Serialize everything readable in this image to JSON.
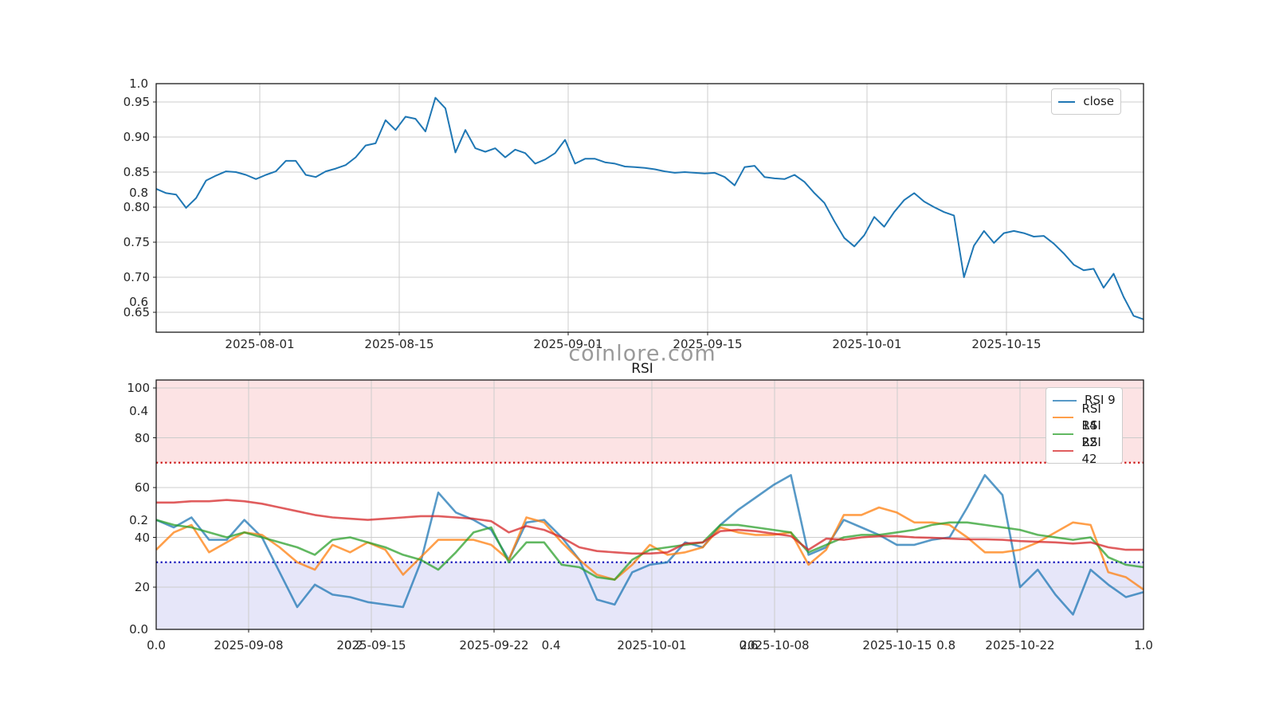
{
  "watermark": "coinlore.com",
  "colors": {
    "close_line": "#1f77b4",
    "rsi9": "rgba(31,119,180,0.75)",
    "rsi14": "rgba(255,127,14,0.75)",
    "rsi22": "rgba(44,160,44,0.75)",
    "rsi42": "rgba(214,39,40,0.75)",
    "overbought_band": "#fce3e4",
    "oversold_band": "#e6e6f9",
    "overbought_dotted": "#cc1111",
    "oversold_dotted": "#1111bb",
    "gridline": "#cccccc",
    "spine": "#1a1a1a"
  },
  "chart_data": [
    {
      "type": "line",
      "title": "",
      "xlabel": "",
      "ylabel": "",
      "x_start": "2025-07-22",
      "x_end": "2025-10-28",
      "x_tick_labels": [
        "2025-08-01",
        "2025-08-15",
        "2025-09-01",
        "2025-09-15",
        "2025-10-01",
        "2025-10-15"
      ],
      "y_tick_labels": [
        "0.95",
        "0.90",
        "0.85",
        "0.80",
        "0.75",
        "0.70",
        "0.65"
      ],
      "y_tick_values": [
        0.95,
        0.9,
        0.85,
        0.8,
        0.75,
        0.7,
        0.65
      ],
      "ylim": [
        0.624,
        0.975
      ],
      "grid": true,
      "legend_position": "upper right",
      "series": [
        {
          "name": "close",
          "values": [
            0.826,
            0.82,
            0.818,
            0.799,
            0.813,
            0.838,
            0.845,
            0.851,
            0.85,
            0.846,
            0.84,
            0.846,
            0.851,
            0.866,
            0.866,
            0.846,
            0.843,
            0.851,
            0.855,
            0.86,
            0.871,
            0.888,
            0.891,
            0.924,
            0.91,
            0.929,
            0.926,
            0.908,
            0.956,
            0.941,
            0.878,
            0.91,
            0.884,
            0.879,
            0.884,
            0.871,
            0.882,
            0.877,
            0.862,
            0.868,
            0.877,
            0.896,
            0.862,
            0.869,
            0.869,
            0.864,
            0.862,
            0.858,
            0.857,
            0.856,
            0.854,
            0.851,
            0.849,
            0.85,
            0.849,
            0.848,
            0.849,
            0.843,
            0.831,
            0.857,
            0.859,
            0.843,
            0.841,
            0.84,
            0.846,
            0.836,
            0.82,
            0.806,
            0.78,
            0.756,
            0.744,
            0.76,
            0.786,
            0.772,
            0.793,
            0.81,
            0.82,
            0.808,
            0.8,
            0.793,
            0.788,
            0.7,
            0.745,
            0.766,
            0.749,
            0.763,
            0.766,
            0.763,
            0.758,
            0.759,
            0.748,
            0.734,
            0.718,
            0.71,
            0.712,
            0.685,
            0.705,
            0.672,
            0.645,
            0.64
          ]
        }
      ]
    },
    {
      "type": "line",
      "title": "RSI",
      "xlabel": "",
      "ylabel": "",
      "x_start": "2025-09-03",
      "x_end": "2025-10-29",
      "x_tick_labels": [
        "2025-09-08",
        "2025-09-15",
        "2025-09-22",
        "2025-10-01",
        "2025-10-08",
        "2025-10-15",
        "2025-10-22"
      ],
      "y_tick_labels": [
        "100",
        "80",
        "60",
        "40",
        "20"
      ],
      "y_tick_values": [
        100,
        80,
        60,
        40,
        20
      ],
      "ylim": [
        3,
        103
      ],
      "grid": true,
      "legend_position": "upper right",
      "overbought_level": 70,
      "oversold_level": 30,
      "series": [
        {
          "name": "RSI 9",
          "values": [
            47,
            44,
            48,
            39,
            39,
            47,
            40,
            26,
            12,
            21,
            17,
            16,
            14,
            13,
            12,
            30,
            58,
            50,
            47,
            43,
            31,
            46,
            47,
            40,
            31,
            15,
            13,
            26,
            29,
            30,
            38,
            36,
            45,
            51,
            56,
            61,
            65,
            33,
            36,
            47,
            44,
            41,
            37,
            37,
            39,
            40,
            52,
            65,
            57,
            20,
            27,
            17,
            9,
            27,
            21,
            16,
            18
          ]
        },
        {
          "name": "RSI 14",
          "values": [
            35,
            42,
            45,
            34,
            38,
            42,
            41,
            36,
            30,
            27,
            37,
            34,
            38,
            35,
            25,
            32,
            39,
            39,
            39,
            37,
            31,
            48,
            46,
            38,
            31,
            25,
            23,
            29,
            37,
            33,
            34,
            36,
            44,
            42,
            41,
            41,
            42,
            29,
            35,
            49,
            49,
            52,
            50,
            46,
            46,
            45,
            40,
            34,
            34,
            35,
            38,
            42,
            46,
            45,
            26,
            24,
            19
          ]
        },
        {
          "name": "RSI 22",
          "values": [
            47,
            45,
            44,
            42,
            40,
            42,
            40,
            38,
            36,
            33,
            39,
            40,
            38,
            36,
            33,
            31,
            27,
            34,
            42,
            44,
            30,
            38,
            38,
            29,
            28,
            24,
            23,
            31,
            35,
            36,
            37,
            38,
            45,
            45,
            44,
            43,
            42,
            34,
            37,
            40,
            41,
            41,
            42,
            43,
            45,
            46,
            46,
            45,
            44,
            43,
            41,
            40,
            39,
            40,
            32,
            29,
            28
          ]
        },
        {
          "name": "RSI 42",
          "values": [
            54,
            54,
            54.5,
            54.5,
            55,
            54.5,
            53.5,
            52,
            50.5,
            49,
            48,
            47.5,
            47,
            47.5,
            48,
            48.5,
            48.5,
            48,
            47.5,
            46.5,
            42,
            44.5,
            43,
            40,
            36,
            34.5,
            34,
            33.5,
            33.5,
            34,
            37.5,
            38,
            42.5,
            43,
            42.5,
            41.5,
            40.5,
            35,
            39.5,
            39,
            40,
            40.5,
            40.5,
            40,
            39.8,
            39.5,
            39.2,
            39.2,
            39,
            38.5,
            38.2,
            38,
            37.5,
            38,
            36,
            35,
            35
          ]
        }
      ]
    }
  ],
  "overlay_axis": {
    "x_tick_labels": [
      "0.0",
      "0.2",
      "0.4",
      "0.6",
      "0.8",
      "1.0"
    ],
    "y_tick_labels": [
      "1.0",
      "0.8",
      "0.6",
      "0.4",
      "0.2",
      "0.0"
    ]
  }
}
